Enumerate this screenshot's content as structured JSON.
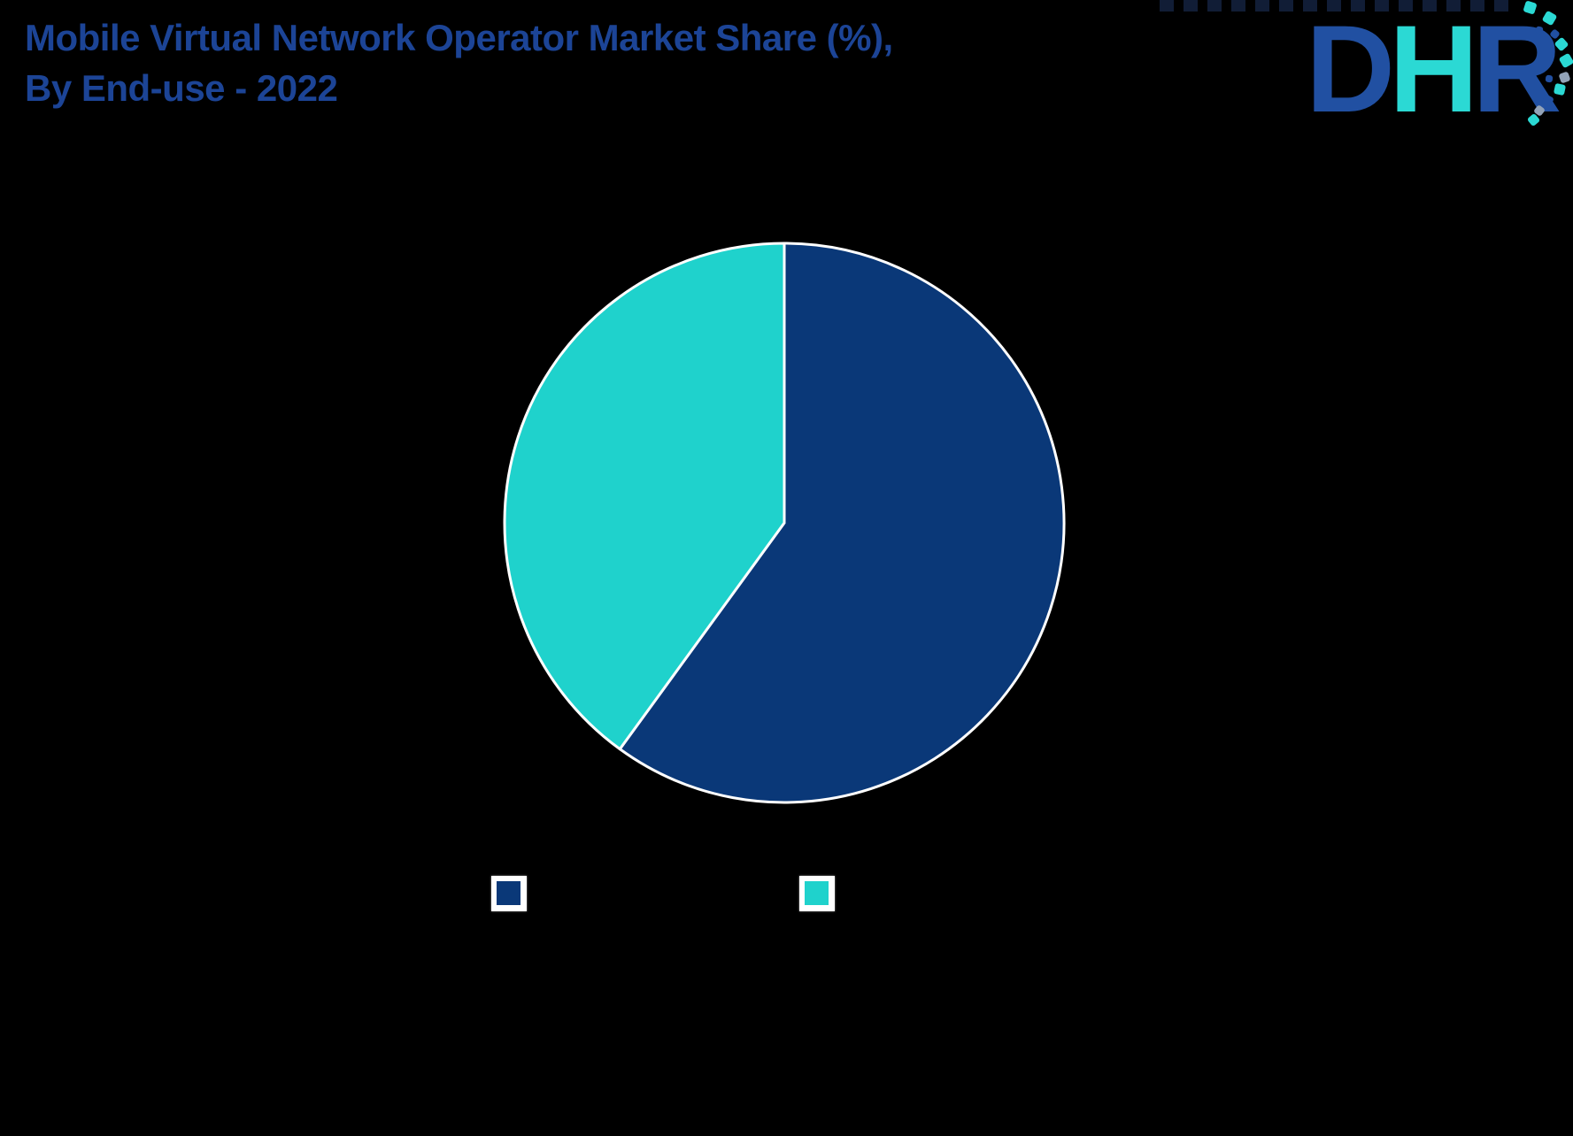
{
  "page": {
    "background_color": "#000000"
  },
  "header": {
    "title_line1": "Mobile Virtual Network Operator Market Share (%),",
    "title_line2": "By End-use - 2022",
    "title_color": "#1c4496"
  },
  "logo": {
    "letters": [
      {
        "char": "D",
        "color": "#2150a2"
      },
      {
        "char": "H",
        "color": "#2bd9d4"
      },
      {
        "char": "R",
        "color": "#2150a2"
      }
    ],
    "dot_colors": {
      "teal": "#2bd9d4",
      "navy": "#2150a2",
      "gray": "#93a3b8"
    }
  },
  "chart_data": {
    "type": "pie",
    "title": "Mobile Virtual Network Operator Market Share (%), By End-use - 2022",
    "segments": [
      {
        "label": "",
        "value": 60,
        "color": "#0a3878"
      },
      {
        "label": "",
        "value": 40,
        "color": "#1fd2cc"
      }
    ],
    "start_angle_deg": 0,
    "start_position": "12-oclock",
    "direction": "clockwise",
    "edge_color": "#ffffff",
    "edge_width": 3,
    "slice_labels_visible": false,
    "legend_position": "bottom",
    "legend": {
      "items": [
        {
          "label": "",
          "color": "#0a3878"
        },
        {
          "label": "",
          "color": "#1fd2cc"
        }
      ]
    }
  }
}
